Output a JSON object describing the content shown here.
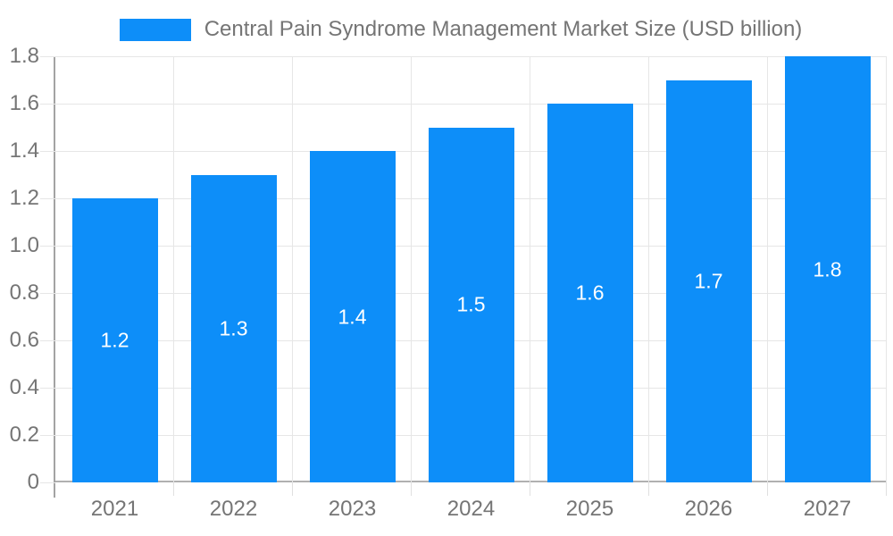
{
  "legend": {
    "label": "Central Pain Syndrome Management Market Size (USD billion)"
  },
  "chart_data": {
    "type": "bar",
    "title": "Central Pain Syndrome Management Market Size (USD billion)",
    "categories": [
      "2021",
      "2022",
      "2023",
      "2024",
      "2025",
      "2026",
      "2027"
    ],
    "values": [
      1.2,
      1.3,
      1.4,
      1.5,
      1.6,
      1.7,
      1.8
    ],
    "value_labels": [
      "1.2",
      "1.3",
      "1.4",
      "1.5",
      "1.6",
      "1.7",
      "1.8"
    ],
    "xlabel": "",
    "ylabel": "",
    "ylim": [
      0,
      1.8
    ],
    "yticks": [
      {
        "value": 0.0,
        "label": "0"
      },
      {
        "value": 0.2,
        "label": "0.2"
      },
      {
        "value": 0.4,
        "label": "0.4"
      },
      {
        "value": 0.6,
        "label": "0.6"
      },
      {
        "value": 0.8,
        "label": "0.8"
      },
      {
        "value": 1.0,
        "label": "1.0"
      },
      {
        "value": 1.2,
        "label": "1.2"
      },
      {
        "value": 1.4,
        "label": "1.4"
      },
      {
        "value": 1.6,
        "label": "1.6"
      },
      {
        "value": 1.8,
        "label": "1.8"
      }
    ],
    "grid": "on",
    "legend_position": "top"
  },
  "colors": {
    "bar": "#0d8ef9",
    "data_label": "#ffffff",
    "grid": "#e6e6e6",
    "axis_line": "#a9a9a9",
    "tick_text": "#757575",
    "background": "#ffffff"
  }
}
